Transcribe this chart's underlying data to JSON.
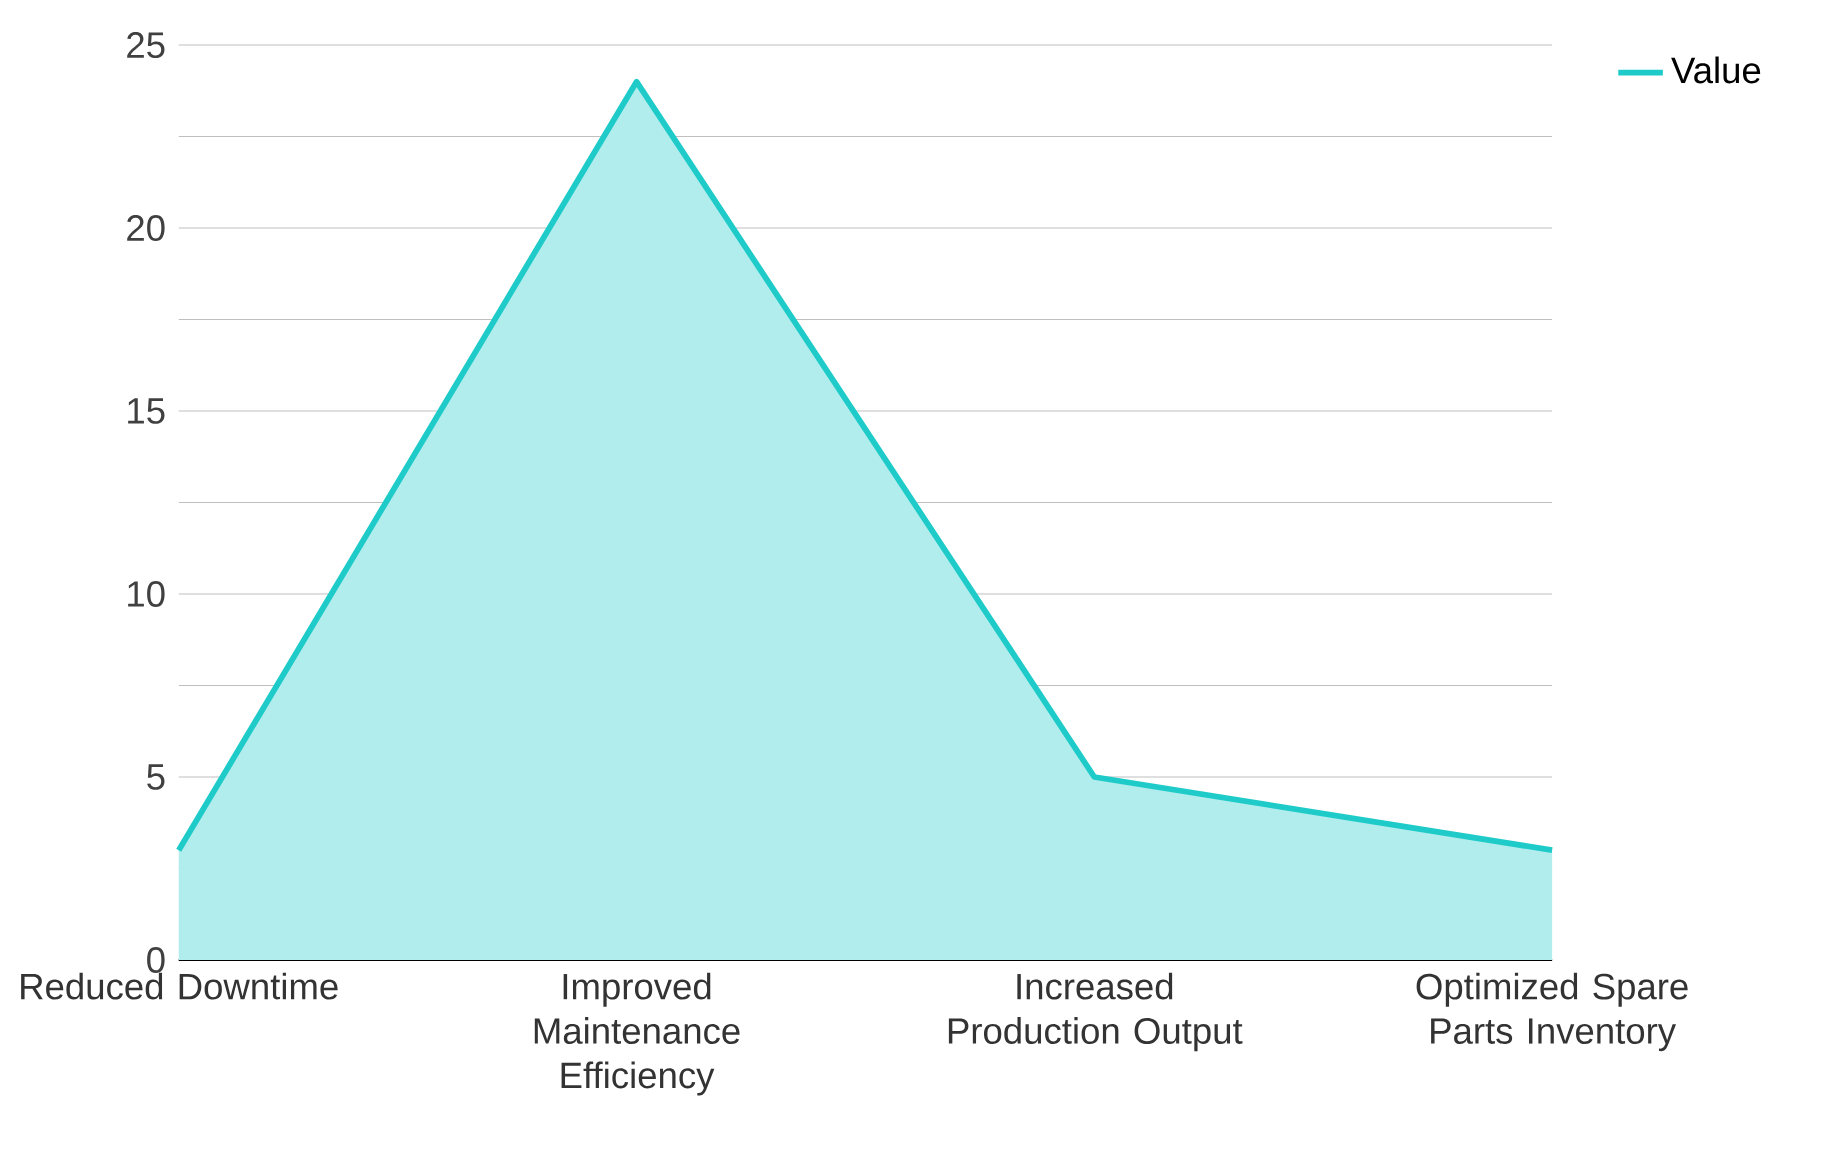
{
  "chart_data": {
    "type": "area",
    "categories": [
      "Reduced Downtime",
      "Improved Maintenance Efficiency",
      "Increased Production Output",
      "Optimized Spare Parts Inventory"
    ],
    "series": [
      {
        "name": "Value",
        "color": "#1ecbc9",
        "values": [
          3,
          24,
          5,
          3
        ]
      }
    ],
    "ylim": [
      0,
      25
    ],
    "yticks": [
      0,
      {
        "value": 2.5,
        "label": null
      },
      5,
      {
        "value": 7.5,
        "label": null
      },
      10,
      {
        "value": 12.5,
        "label": null
      },
      15,
      {
        "value": 17.5,
        "label": null
      },
      20,
      {
        "value": 22.5,
        "label": null
      },
      25
    ],
    "grid": "y",
    "legend": "top right"
  }
}
